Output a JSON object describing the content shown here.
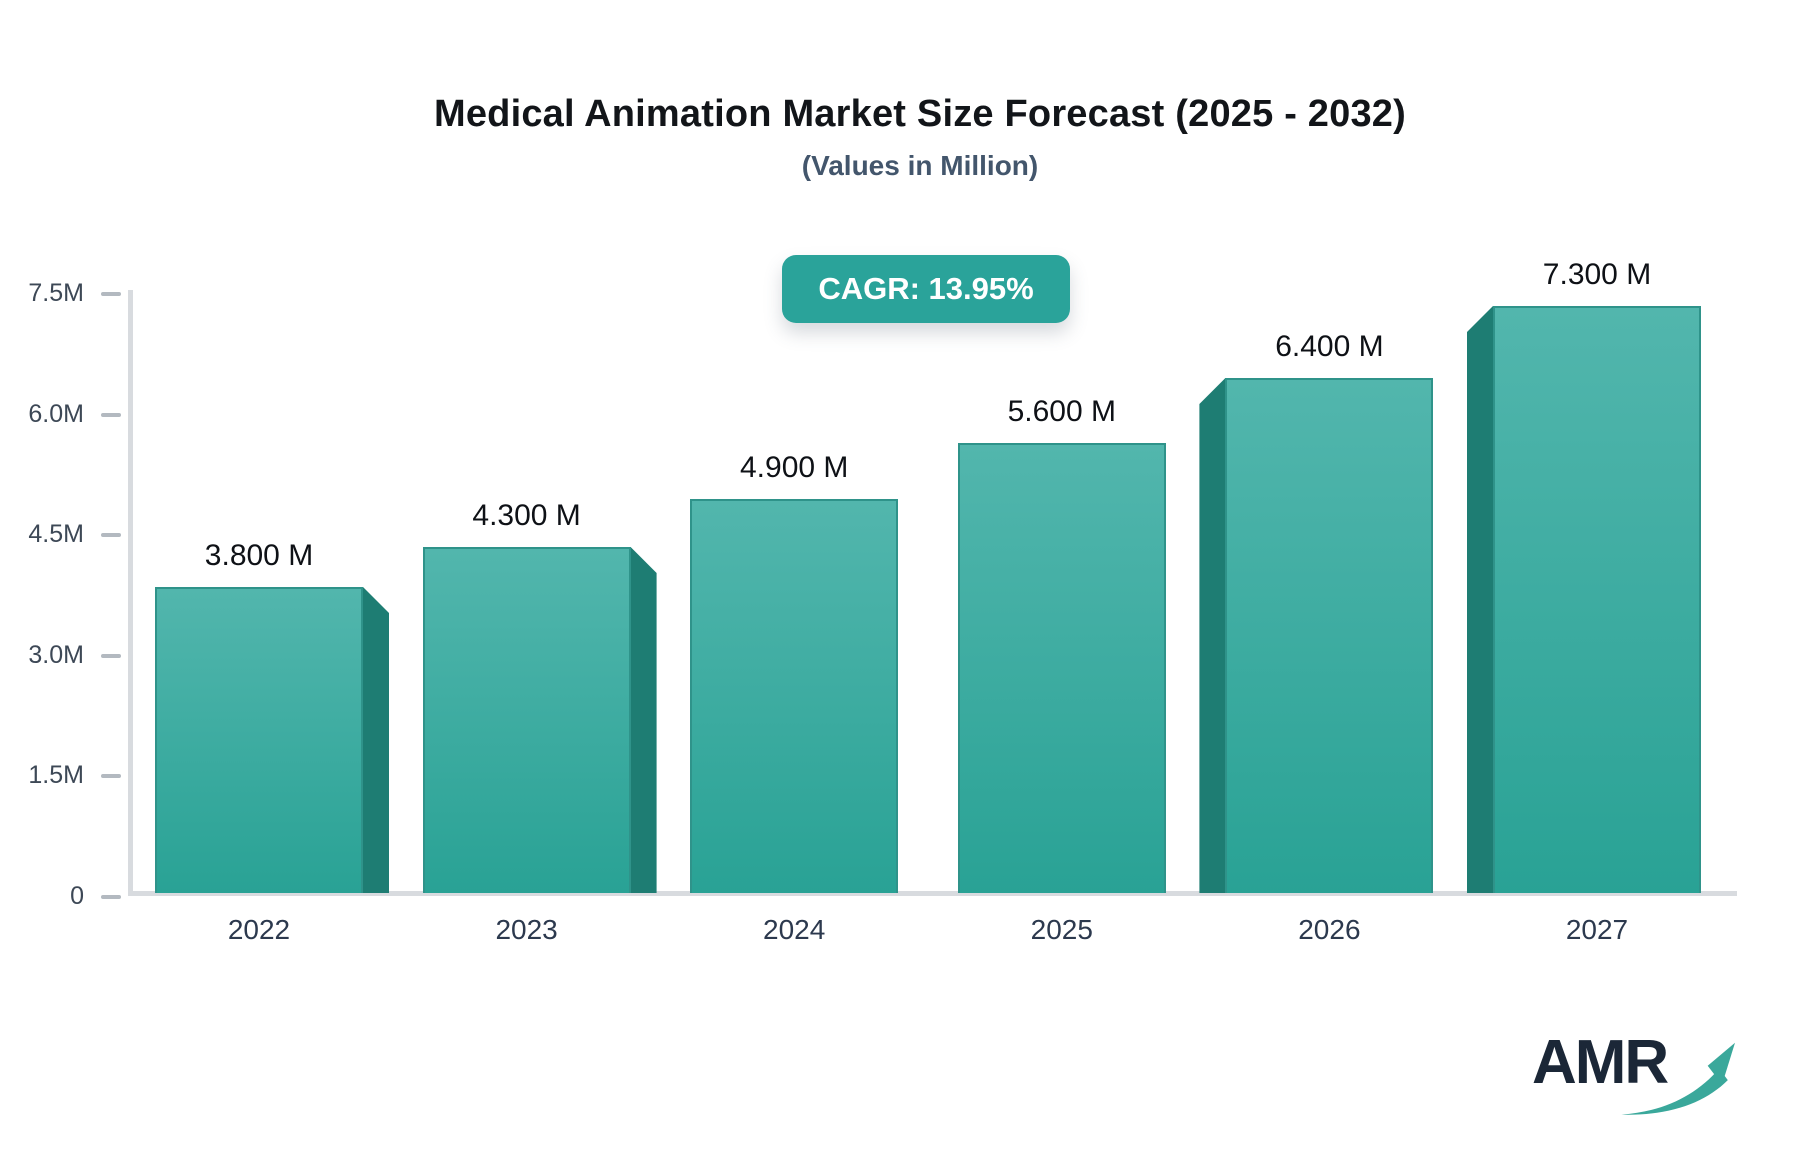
{
  "title": "Medical Animation Market Size Forecast (2025 - 2032)",
  "subtitle": "(Values in Million)",
  "badge": {
    "label": "CAGR: 13.95%"
  },
  "logo": {
    "text": "AMR"
  },
  "colors": {
    "bar_gradient_top": "#52b6ad",
    "bar_gradient_bottom": "#29a295",
    "bar_border": "#2f938a",
    "bar_bevel": "#1e7d73",
    "badge_background": "#2aa39a",
    "badge_text": "#ffffff",
    "title_text": "#121519",
    "subtitle_text": "#43566c",
    "axis_line": "#d8dbdf",
    "tick_mark": "#b3b9c0",
    "y_label": "#3d4856",
    "x_label": "#2c394e",
    "logo_navy": "#1b2737",
    "logo_teal": "#3aa89b"
  },
  "chart_data": {
    "type": "bar",
    "title": "Medical Animation Market Size Forecast (2025 - 2032)",
    "subtitle": "(Values in Million)",
    "categories": [
      "2022",
      "2023",
      "2024",
      "2025",
      "2026",
      "2027"
    ],
    "values": [
      3.8,
      4.3,
      4.9,
      5.6,
      6.4,
      7.3
    ],
    "bar_labels": [
      "3.800 M",
      "4.300 M",
      "4.900 M",
      "5.600 M",
      "6.400 M",
      "7.300 M"
    ],
    "y_ticks": [
      "7.5M",
      "6.0M",
      "4.5M",
      "3.0M",
      "1.5M",
      "0"
    ],
    "y_tick_values": [
      7.5,
      6.0,
      4.5,
      3.0,
      1.5,
      0
    ],
    "ylim": [
      0,
      7.5
    ],
    "xlabel": "",
    "ylabel": "",
    "grid": false,
    "legend": false,
    "annotation": "CAGR: 13.95%"
  }
}
